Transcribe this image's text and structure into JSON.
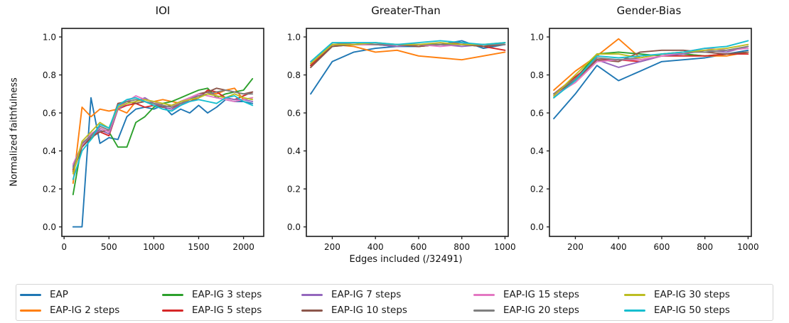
{
  "figure": {
    "ylabel": "Normalized faithfulness",
    "xlabel": "Edges included (/32491)"
  },
  "legend": {
    "entries": [
      {
        "label": "EAP",
        "color": "#1f77b4"
      },
      {
        "label": "EAP-IG 2 steps",
        "color": "#ff7f0e"
      },
      {
        "label": "EAP-IG 3 steps",
        "color": "#2ca02c"
      },
      {
        "label": "EAP-IG 5 steps",
        "color": "#d62728"
      },
      {
        "label": "EAP-IG 7 steps",
        "color": "#9467bd"
      },
      {
        "label": "EAP-IG 10 steps",
        "color": "#8c564b"
      },
      {
        "label": "EAP-IG 15 steps",
        "color": "#e377c2"
      },
      {
        "label": "EAP-IG 20 steps",
        "color": "#7f7f7f"
      },
      {
        "label": "EAP-IG 30 steps",
        "color": "#bcbd22"
      },
      {
        "label": "EAP-IG 50 steps",
        "color": "#17becf"
      }
    ]
  },
  "chart_data": [
    {
      "type": "line",
      "title": "IOI",
      "xlabel": "Edges included (/32491)",
      "ylabel": "Normalized faithfulness",
      "x": [
        100,
        200,
        300,
        400,
        500,
        600,
        700,
        800,
        900,
        1000,
        1100,
        1200,
        1300,
        1400,
        1500,
        1600,
        1700,
        1800,
        1900,
        2000,
        2100
      ],
      "xlim": [
        -25,
        2225
      ],
      "ylim": [
        -0.05,
        1.045
      ],
      "xticks": [
        0,
        500,
        1000,
        1500,
        2000
      ],
      "yticks": [
        0.0,
        0.2,
        0.4,
        0.6,
        0.8,
        1.0
      ],
      "grid": false,
      "series": [
        {
          "name": "EAP",
          "color": "#1f77b4",
          "values": [
            0.0,
            0.0,
            0.68,
            0.44,
            0.47,
            0.46,
            0.58,
            0.62,
            0.63,
            0.62,
            0.64,
            0.59,
            0.62,
            0.6,
            0.64,
            0.6,
            0.63,
            0.67,
            0.66,
            0.66,
            0.65
          ]
        },
        {
          "name": "EAP-IG 2 steps",
          "color": "#ff7f0e",
          "values": [
            0.23,
            0.63,
            0.58,
            0.62,
            0.61,
            0.62,
            0.6,
            0.66,
            0.67,
            0.66,
            0.67,
            0.66,
            0.65,
            0.67,
            0.7,
            0.71,
            0.7,
            0.72,
            0.73,
            0.67,
            0.68
          ]
        },
        {
          "name": "EAP-IG 3 steps",
          "color": "#2ca02c",
          "values": [
            0.17,
            0.44,
            0.46,
            0.52,
            0.5,
            0.42,
            0.42,
            0.55,
            0.58,
            0.63,
            0.65,
            0.66,
            0.68,
            0.7,
            0.72,
            0.73,
            0.68,
            0.7,
            0.71,
            0.72,
            0.78
          ]
        },
        {
          "name": "EAP-IG 5 steps",
          "color": "#d62728",
          "values": [
            0.3,
            0.44,
            0.48,
            0.5,
            0.48,
            0.62,
            0.64,
            0.65,
            0.63,
            0.64,
            0.63,
            0.62,
            0.65,
            0.66,
            0.68,
            0.72,
            0.71,
            0.68,
            0.67,
            0.69,
            0.71
          ]
        },
        {
          "name": "EAP-IG 7 steps",
          "color": "#9467bd",
          "values": [
            0.32,
            0.43,
            0.48,
            0.51,
            0.49,
            0.62,
            0.65,
            0.66,
            0.68,
            0.65,
            0.63,
            0.62,
            0.64,
            0.67,
            0.7,
            0.71,
            0.69,
            0.68,
            0.67,
            0.67,
            0.66
          ]
        },
        {
          "name": "EAP-IG 10 steps",
          "color": "#8c564b",
          "values": [
            0.29,
            0.42,
            0.47,
            0.5,
            0.51,
            0.65,
            0.66,
            0.65,
            0.66,
            0.64,
            0.63,
            0.64,
            0.66,
            0.68,
            0.7,
            0.71,
            0.73,
            0.72,
            0.71,
            0.7,
            0.71
          ]
        },
        {
          "name": "EAP-IG 15 steps",
          "color": "#e377c2",
          "values": [
            0.33,
            0.43,
            0.49,
            0.52,
            0.5,
            0.63,
            0.66,
            0.69,
            0.67,
            0.66,
            0.64,
            0.63,
            0.66,
            0.68,
            0.7,
            0.69,
            0.68,
            0.67,
            0.66,
            0.67,
            0.68
          ]
        },
        {
          "name": "EAP-IG 20 steps",
          "color": "#7f7f7f",
          "values": [
            0.31,
            0.44,
            0.48,
            0.53,
            0.51,
            0.64,
            0.66,
            0.67,
            0.66,
            0.65,
            0.64,
            0.63,
            0.65,
            0.67,
            0.69,
            0.7,
            0.71,
            0.72,
            0.71,
            0.7,
            0.7
          ]
        },
        {
          "name": "EAP-IG 30 steps",
          "color": "#bcbd22",
          "values": [
            0.28,
            0.45,
            0.5,
            0.55,
            0.52,
            0.63,
            0.65,
            0.66,
            0.67,
            0.66,
            0.65,
            0.64,
            0.66,
            0.67,
            0.68,
            0.7,
            0.69,
            0.68,
            0.7,
            0.68,
            0.67
          ]
        },
        {
          "name": "EAP-IG 50 steps",
          "color": "#17becf",
          "values": [
            0.25,
            0.4,
            0.46,
            0.54,
            0.52,
            0.64,
            0.67,
            0.68,
            0.66,
            0.64,
            0.62,
            0.61,
            0.64,
            0.66,
            0.67,
            0.66,
            0.65,
            0.68,
            0.69,
            0.66,
            0.64
          ]
        }
      ]
    },
    {
      "type": "line",
      "title": "Greater-Than",
      "xlabel": "Edges included (/32491)",
      "x": [
        100,
        200,
        300,
        400,
        500,
        600,
        700,
        800,
        900,
        1000
      ],
      "xlim": [
        80,
        1015
      ],
      "ylim": [
        -0.05,
        1.045
      ],
      "xticks": [
        200,
        400,
        600,
        800,
        1000
      ],
      "yticks": [
        0.0,
        0.2,
        0.4,
        0.6,
        0.8,
        1.0
      ],
      "grid": false,
      "series": [
        {
          "name": "EAP",
          "color": "#1f77b4",
          "values": [
            0.7,
            0.87,
            0.92,
            0.94,
            0.95,
            0.95,
            0.96,
            0.98,
            0.94,
            0.96
          ]
        },
        {
          "name": "EAP-IG 2 steps",
          "color": "#ff7f0e",
          "values": [
            0.84,
            0.96,
            0.95,
            0.92,
            0.93,
            0.9,
            0.89,
            0.88,
            0.9,
            0.92
          ]
        },
        {
          "name": "EAP-IG 3 steps",
          "color": "#2ca02c",
          "values": [
            0.85,
            0.95,
            0.96,
            0.96,
            0.95,
            0.96,
            0.96,
            0.96,
            0.95,
            0.97
          ]
        },
        {
          "name": "EAP-IG 5 steps",
          "color": "#d62728",
          "values": [
            0.85,
            0.96,
            0.96,
            0.96,
            0.96,
            0.95,
            0.96,
            0.97,
            0.95,
            0.93
          ]
        },
        {
          "name": "EAP-IG 7 steps",
          "color": "#9467bd",
          "values": [
            0.86,
            0.96,
            0.96,
            0.96,
            0.95,
            0.96,
            0.96,
            0.95,
            0.96,
            0.96
          ]
        },
        {
          "name": "EAP-IG 10 steps",
          "color": "#8c564b",
          "values": [
            0.84,
            0.95,
            0.96,
            0.96,
            0.96,
            0.95,
            0.96,
            0.96,
            0.95,
            0.96
          ]
        },
        {
          "name": "EAP-IG 15 steps",
          "color": "#e377c2",
          "values": [
            0.86,
            0.96,
            0.96,
            0.96,
            0.96,
            0.96,
            0.95,
            0.96,
            0.96,
            0.96
          ]
        },
        {
          "name": "EAP-IG 20 steps",
          "color": "#7f7f7f",
          "values": [
            0.86,
            0.96,
            0.97,
            0.96,
            0.96,
            0.96,
            0.96,
            0.96,
            0.96,
            0.96
          ]
        },
        {
          "name": "EAP-IG 30 steps",
          "color": "#bcbd22",
          "values": [
            0.86,
            0.96,
            0.96,
            0.97,
            0.96,
            0.96,
            0.97,
            0.96,
            0.96,
            0.97
          ]
        },
        {
          "name": "EAP-IG 50 steps",
          "color": "#17becf",
          "values": [
            0.87,
            0.97,
            0.97,
            0.97,
            0.96,
            0.97,
            0.98,
            0.97,
            0.96,
            0.97
          ]
        }
      ]
    },
    {
      "type": "line",
      "title": "Gender-Bias",
      "xlabel": "Edges included (/32491)",
      "x": [
        100,
        200,
        300,
        400,
        500,
        600,
        700,
        800,
        900,
        1000
      ],
      "xlim": [
        80,
        1015
      ],
      "ylim": [
        -0.05,
        1.045
      ],
      "xticks": [
        200,
        400,
        600,
        800,
        1000
      ],
      "yticks": [
        0.0,
        0.2,
        0.4,
        0.6,
        0.8,
        1.0
      ],
      "grid": false,
      "series": [
        {
          "name": "EAP",
          "color": "#1f77b4",
          "values": [
            0.57,
            0.7,
            0.85,
            0.77,
            0.82,
            0.87,
            0.88,
            0.89,
            0.91,
            0.93
          ]
        },
        {
          "name": "EAP-IG 2 steps",
          "color": "#ff7f0e",
          "values": [
            0.72,
            0.82,
            0.9,
            0.99,
            0.89,
            0.91,
            0.91,
            0.9,
            0.9,
            0.92
          ]
        },
        {
          "name": "EAP-IG 3 steps",
          "color": "#2ca02c",
          "values": [
            0.68,
            0.78,
            0.91,
            0.92,
            0.91,
            0.9,
            0.91,
            0.9,
            0.91,
            0.92
          ]
        },
        {
          "name": "EAP-IG 5 steps",
          "color": "#d62728",
          "values": [
            0.7,
            0.79,
            0.88,
            0.88,
            0.87,
            0.9,
            0.9,
            0.9,
            0.91,
            0.91
          ]
        },
        {
          "name": "EAP-IG 7 steps",
          "color": "#9467bd",
          "values": [
            0.69,
            0.78,
            0.88,
            0.84,
            0.87,
            0.9,
            0.91,
            0.93,
            0.92,
            0.95
          ]
        },
        {
          "name": "EAP-IG 10 steps",
          "color": "#8c564b",
          "values": [
            0.7,
            0.77,
            0.88,
            0.87,
            0.92,
            0.93,
            0.93,
            0.92,
            0.91,
            0.92
          ]
        },
        {
          "name": "EAP-IG 15 steps",
          "color": "#e377c2",
          "values": [
            0.69,
            0.76,
            0.87,
            0.88,
            0.88,
            0.9,
            0.92,
            0.94,
            0.93,
            0.94
          ]
        },
        {
          "name": "EAP-IG 20 steps",
          "color": "#7f7f7f",
          "values": [
            0.7,
            0.78,
            0.89,
            0.88,
            0.89,
            0.91,
            0.92,
            0.92,
            0.93,
            0.95
          ]
        },
        {
          "name": "EAP-IG 30 steps",
          "color": "#bcbd22",
          "values": [
            0.69,
            0.8,
            0.91,
            0.91,
            0.89,
            0.91,
            0.92,
            0.93,
            0.94,
            0.96
          ]
        },
        {
          "name": "EAP-IG 50 steps",
          "color": "#17becf",
          "values": [
            0.68,
            0.77,
            0.9,
            0.89,
            0.9,
            0.91,
            0.92,
            0.94,
            0.95,
            0.98
          ]
        }
      ]
    }
  ]
}
